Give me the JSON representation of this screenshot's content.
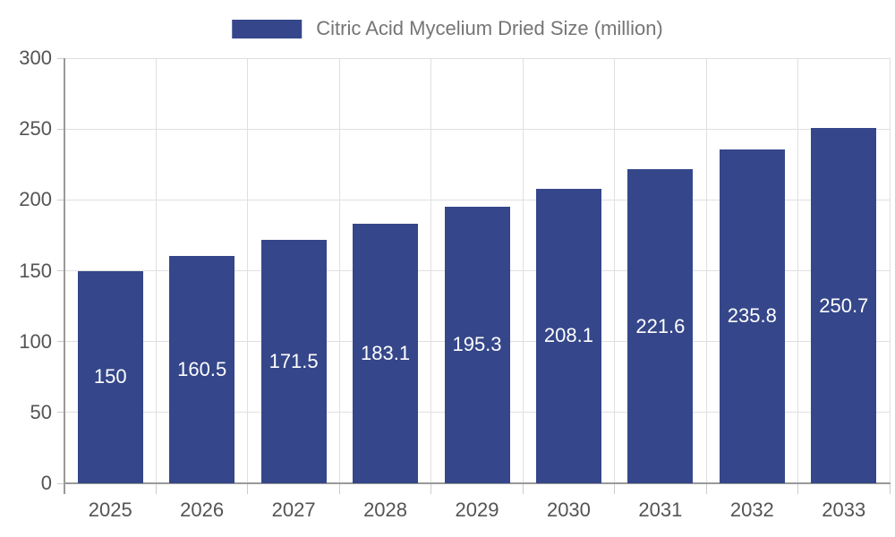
{
  "chart_data": {
    "type": "bar",
    "title": "Citric Acid Mycelium Dried Size (million)",
    "legend_position": "top",
    "categories": [
      "2025",
      "2026",
      "2027",
      "2028",
      "2029",
      "2030",
      "2031",
      "2032",
      "2033"
    ],
    "series": [
      {
        "name": "Citric Acid Mycelium Dried Size (million)",
        "values": [
          150,
          160.5,
          171.5,
          183.1,
          195.3,
          208.1,
          221.6,
          235.8,
          250.7
        ]
      }
    ],
    "xlabel": "",
    "ylabel": "",
    "ylim": [
      0,
      300
    ],
    "yticks": [
      0,
      50,
      100,
      150,
      200,
      250,
      300
    ],
    "grid": true,
    "colors": {
      "bar": "#35478a",
      "grid": "#e0e0e0",
      "axis": "#999999",
      "tick": "#cccccc",
      "tick_label": "#545454",
      "title_text": "#757575",
      "value_label": "#ffffff",
      "background": "#ffffff"
    }
  }
}
